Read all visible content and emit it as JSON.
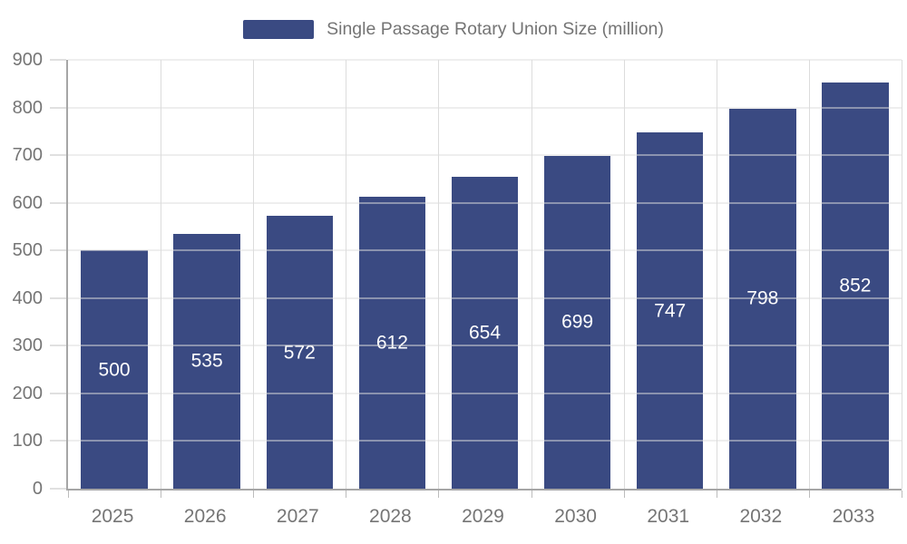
{
  "page": {
    "background_color": "#ffffff"
  },
  "legend": {
    "label": "Single Passage Rotary Union Size (million)",
    "swatch_color": "#3a4a82",
    "text_color": "#747474"
  },
  "chart_data": {
    "type": "bar",
    "title": "Single Passage Rotary Union Size (million)",
    "categories": [
      "2025",
      "2026",
      "2027",
      "2028",
      "2029",
      "2030",
      "2031",
      "2032",
      "2033"
    ],
    "series": [
      {
        "name": "Single Passage Rotary Union Size (million)",
        "color": "#3a4a82",
        "values": [
          500,
          535,
          572,
          612,
          654,
          699,
          747,
          798,
          852
        ]
      }
    ],
    "xlabel": "",
    "ylabel": "",
    "ylim": [
      0,
      900
    ],
    "y_ticks": [
      0,
      100,
      200,
      300,
      400,
      500,
      600,
      700,
      800,
      900
    ],
    "grid": true,
    "legend_position": "top-center",
    "value_label_position": "inside-center",
    "value_label_color": "#ffffff",
    "axis_text_color": "#757575",
    "gridline_color": "#dcdcdc",
    "axis_line_color": "#a6a6a6"
  }
}
